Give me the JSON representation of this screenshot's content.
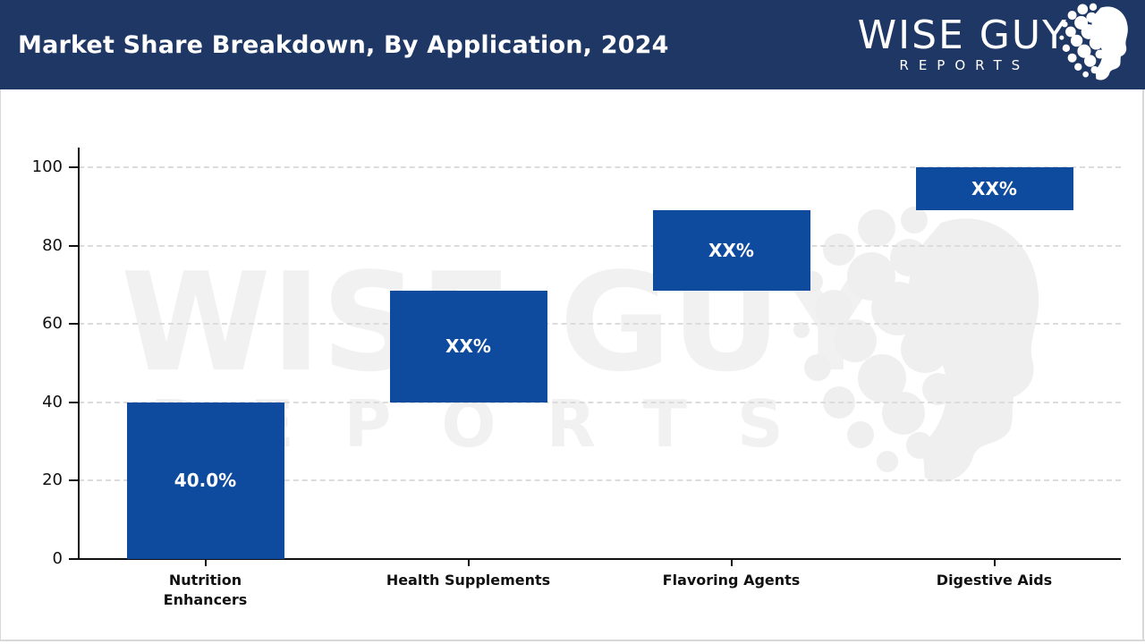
{
  "header": {
    "title": "Market Share Breakdown, By Application, 2024",
    "logo": {
      "line1": "WISE GUY",
      "line2": "REPORTS"
    }
  },
  "watermark": {
    "line1": "WISE GUY",
    "line2": "REPORTS"
  },
  "chart_data": {
    "type": "bar",
    "subtype": "waterfall",
    "title": "Market Share Breakdown, By Application, 2024",
    "categories": [
      "Nutrition\nEnhancers",
      "Health Supplements",
      "Flavoring Agents",
      "Digestive Aids"
    ],
    "segments": [
      {
        "category": "Nutrition Enhancers",
        "start": 0,
        "end": 40,
        "label": "40.0%"
      },
      {
        "category": "Health Supplements",
        "start": 40,
        "end": 68.6,
        "label": "XX%"
      },
      {
        "category": "Flavoring Agents",
        "start": 68.6,
        "end": 89.2,
        "label": "XX%"
      },
      {
        "category": "Digestive Aids",
        "start": 89.2,
        "end": 100,
        "label": "XX%"
      }
    ],
    "ylim": [
      0,
      100
    ],
    "yticks": [
      0,
      20,
      40,
      60,
      80,
      100
    ],
    "xlabel": "",
    "ylabel": "",
    "grid": "horizontal-dashed",
    "legend_position": "none",
    "bar_color": "#0e4a9d"
  },
  "colors": {
    "header_bg": "#1f3764",
    "bar": "#0e4a9d",
    "grid": "#dcdcdc",
    "axis": "#111111",
    "watermark": "#f1f1f1",
    "frame": "#d8d8d8"
  }
}
